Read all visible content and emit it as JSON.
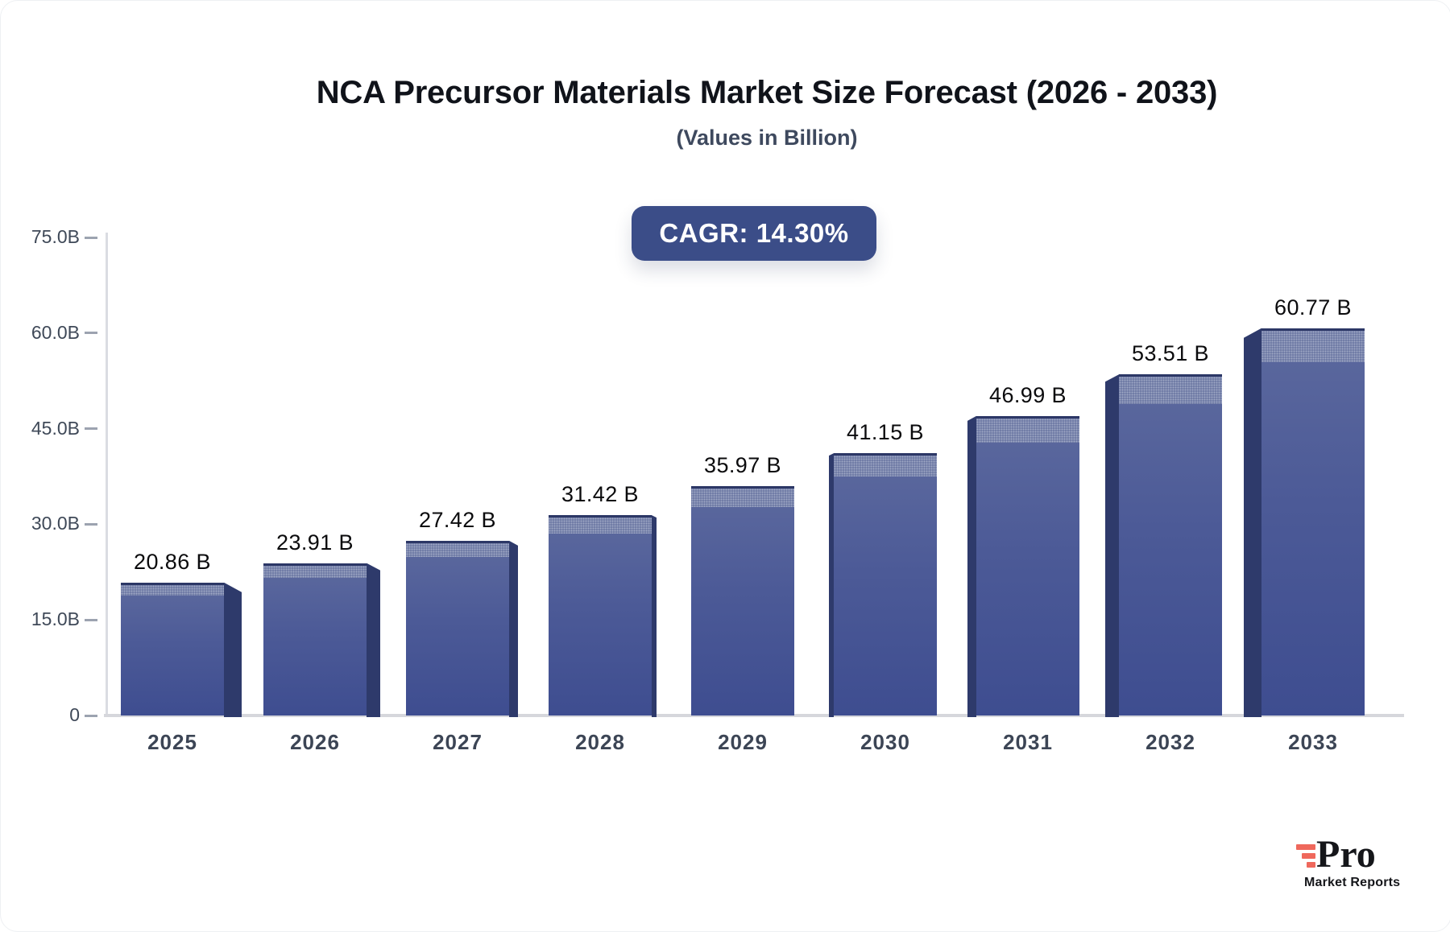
{
  "header": {
    "title": "NCA Precursor Materials Market Size Forecast (2026 - 2033)",
    "subtitle": "(Values in Billion)",
    "cagr_badge": "CAGR: 14.30%"
  },
  "chart_data": {
    "type": "bar",
    "title": "NCA Precursor Materials Market Size Forecast (2026 - 2033)",
    "subtitle": "(Values in Billion)",
    "cagr_label": "CAGR: 14.30%",
    "categories": [
      "2025",
      "2026",
      "2027",
      "2028",
      "2029",
      "2030",
      "2031",
      "2032",
      "2033"
    ],
    "values": [
      20.86,
      23.91,
      27.42,
      31.42,
      35.97,
      41.15,
      46.99,
      53.51,
      60.77
    ],
    "bar_labels": [
      "20.86 B",
      "23.91 B",
      "27.42 B",
      "31.42 B",
      "35.97 B",
      "41.15 B",
      "46.99 B",
      "53.51 B",
      "60.77 B"
    ],
    "xlabel": "",
    "ylabel": "",
    "ylim": [
      0,
      75
    ],
    "y_ticks": [
      {
        "value": 75,
        "label": "75.0B"
      },
      {
        "value": 60,
        "label": "60.0B"
      },
      {
        "value": 45,
        "label": "45.0B"
      },
      {
        "value": 30,
        "label": "30.0B"
      },
      {
        "value": 15,
        "label": "15.0B"
      },
      {
        "value": 0,
        "label": "0"
      }
    ],
    "grid": false,
    "legend": false,
    "bar_style": "3d-perspective"
  },
  "colors": {
    "bar_gradient_top": "#5c699e",
    "bar_gradient_mid": "#4c5a97",
    "bar_gradient_bottom": "#3e4d90",
    "bar_cap": "#66729f",
    "bar_side": "#2e3a6b",
    "badge_bg": "#3b4d88",
    "badge_text": "#ffffff",
    "axis_line": "#dadce2",
    "tick_text": "#3f4958",
    "year_text": "#3c4555",
    "value_text": "#0b0b0d",
    "logo_red": "#ef685c"
  },
  "logo": {
    "brand": "Pro",
    "tagline": "Market Reports"
  }
}
